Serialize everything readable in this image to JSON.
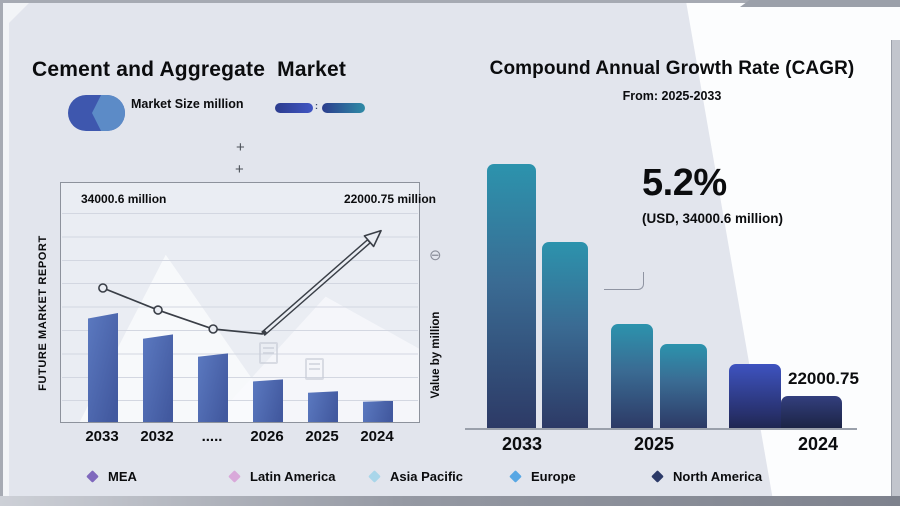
{
  "left_header": {
    "title": "Cement and Aggregate  Market",
    "legend_label": "Market Size million",
    "ratio_colon": ":"
  },
  "right_header": {
    "title": "Compound Annual Growth Rate (CAGR)",
    "subtitle": "From: 2025-2033"
  },
  "left_panel": {
    "label_start": "34000.6 million",
    "label_end": "22000.75 million",
    "side_label_left": "FUTURE MARKET REPORT",
    "side_label_right": "Value by million",
    "minus_icon": "⊖",
    "plus_icon": "+"
  },
  "cagr": {
    "value": "5.2%",
    "note": "(USD, 34000.6 million)",
    "end_value_label": "22000.75"
  },
  "legend": [
    {
      "label": "MEA",
      "color": "#7f68bd"
    },
    {
      "label": "Latin America",
      "color": "#d9a9da"
    },
    {
      "label": "Asia Pacific",
      "color": "#a9d6ea"
    },
    {
      "label": "Europe",
      "color": "#58a7e4"
    },
    {
      "label": "North America",
      "color": "#2c3a68"
    }
  ],
  "chart_data": [
    {
      "type": "bar",
      "title": "Cement and Aggregate Market - Market Size million",
      "categories": [
        "2033",
        "2032",
        ".....",
        "2026",
        "2025",
        "2024"
      ],
      "values_pct": [
        46,
        37,
        29,
        18,
        13,
        9
      ],
      "annotations": {
        "start_value": "34000.6 million",
        "end_value": "22000.75 million"
      },
      "trend_line": {
        "points_pct": [
          [
            11.7,
            55.7
          ],
          [
            27.1,
            46.4
          ],
          [
            42.5,
            38.4
          ],
          [
            56.4,
            36.3
          ]
        ],
        "arrow_to_pct": [
          89.4,
          79.9
        ]
      },
      "ylabel": "Value by million",
      "grid": true,
      "bar_color": "#4a63ab"
    },
    {
      "type": "bar",
      "title": "Compound Annual Growth Rate (CAGR) From: 2025-2033",
      "categories": [
        "2033",
        "2025",
        "2024"
      ],
      "series": [
        {
          "name": "primary",
          "values_pct": [
            91,
            36,
            22
          ]
        },
        {
          "name": "secondary",
          "values_pct": [
            64,
            29,
            11
          ]
        }
      ],
      "annotation": "22000.75",
      "cagr_percent": 5.2,
      "colors": {
        "teal_top": "#2c93ad",
        "navy_bottom": "#2d3a66",
        "royal": "#3e53c0"
      }
    }
  ]
}
